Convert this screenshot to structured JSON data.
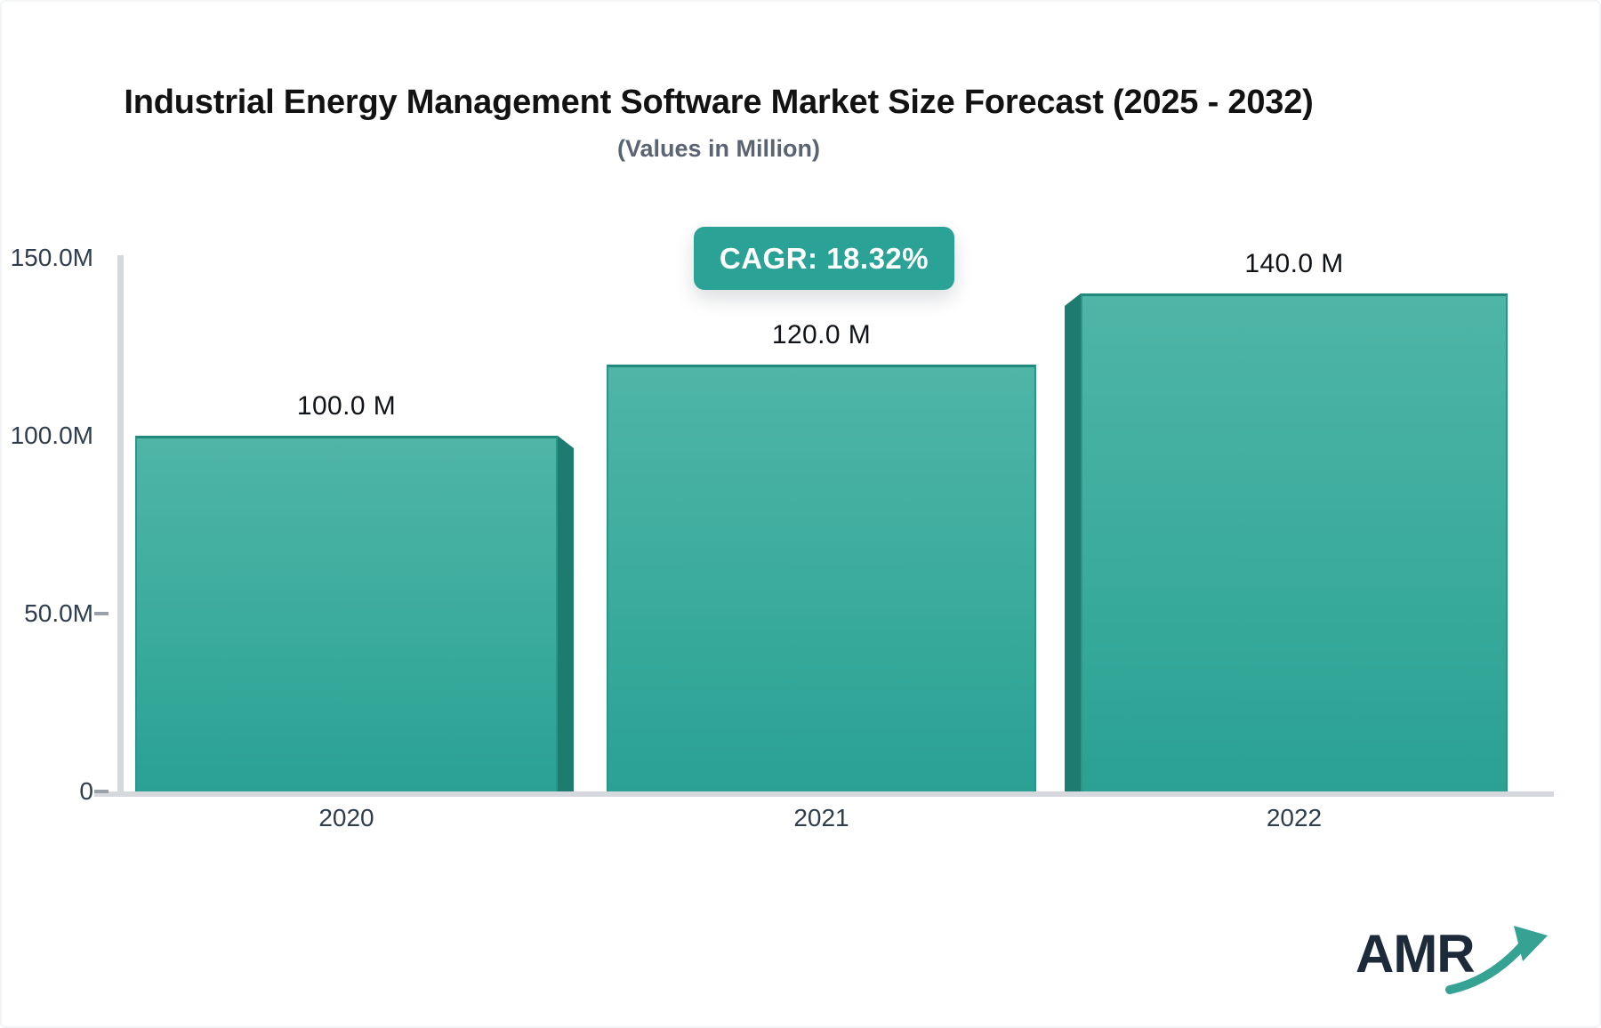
{
  "title": "Industrial Energy Management Software Market Size Forecast (2025 - 2032)",
  "subtitle": "(Values in Million)",
  "badge": {
    "label": "CAGR: 18.32%"
  },
  "logo": {
    "text": "AMR",
    "arrow_icon": "growth-arrow-icon"
  },
  "colors": {
    "accent_teal": "#2aa296",
    "bar_gradient_top": "#4fb5a7",
    "bar_gradient_bottom": "#2aa193",
    "bar_depth_side": "#1d7b70",
    "axis_line": "#d5d8dd",
    "logo_navy": "#1c2a39"
  },
  "chart_data": {
    "type": "bar",
    "categories": [
      "2020",
      "2021",
      "2022"
    ],
    "values": [
      100.0,
      120.0,
      140.0
    ],
    "unit": "Million",
    "bar_labels": [
      "100.0 M",
      "120.0 M",
      "140.0 M"
    ],
    "title": "Industrial Energy Management Software Market Size Forecast (2025 - 2032)",
    "subtitle": "(Values in Million)",
    "annotation": "CAGR: 18.32%",
    "xlabel": "",
    "ylabel": "",
    "y_ticks": [
      "150.0M",
      "100.0M",
      "50.0M",
      "0"
    ],
    "y_tick_values": [
      150,
      100,
      50,
      0
    ],
    "ylim": [
      0,
      150
    ],
    "grid": false,
    "legend": "none"
  }
}
